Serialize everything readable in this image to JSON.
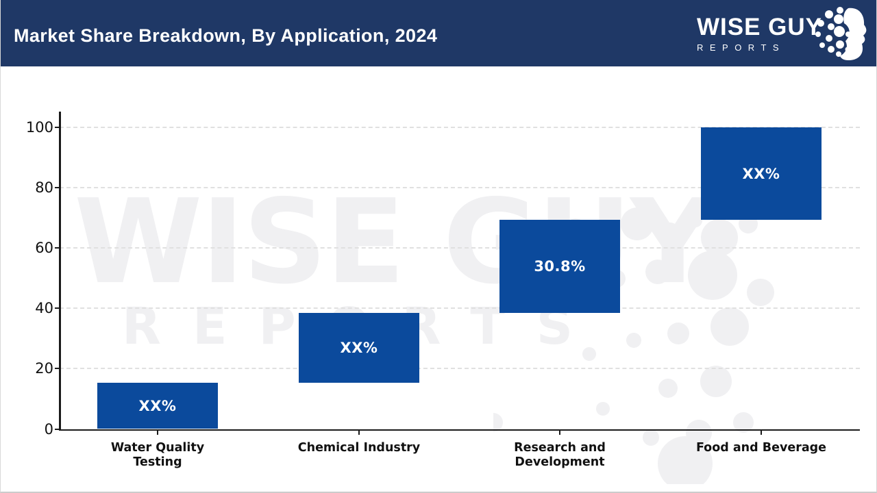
{
  "header": {
    "title": "Market Share Breakdown, By Application, 2024",
    "bg_color": "#1f3866",
    "logo": {
      "wordmark": "WISE GUY",
      "tagline": "REPORTS"
    }
  },
  "watermark": {
    "wordmark": "WISE GUY",
    "tagline": "REPORTS"
  },
  "chart_data": {
    "type": "bar",
    "subtype": "waterfall",
    "title": "Market Share Breakdown, By Application, 2024",
    "categories": [
      "Water Quality Testing",
      "Chemical Industry",
      "Research and Development",
      "Food and Beverage"
    ],
    "category_lines": [
      [
        "Water Quality",
        "Testing"
      ],
      [
        "Chemical Industry"
      ],
      [
        "Research and",
        "Development"
      ],
      [
        "Food and Beverage"
      ]
    ],
    "bars": [
      {
        "category": "Water Quality Testing",
        "start": 0,
        "end": 15.4,
        "label": "XX%"
      },
      {
        "category": "Chemical Industry",
        "start": 15.4,
        "end": 38.5,
        "label": "XX%"
      },
      {
        "category": "Research and Development",
        "start": 38.5,
        "end": 69.3,
        "label": "30.8%"
      },
      {
        "category": "Food and Beverage",
        "start": 69.3,
        "end": 100,
        "label": "XX%"
      }
    ],
    "bar_color": "#0b4a9c",
    "bar_label_color": "#ffffff",
    "ylim": [
      0,
      100
    ],
    "yticks": [
      0,
      20,
      40,
      60,
      80,
      100
    ],
    "grid": "horizontal-dashed",
    "gridline_color": "#e0e0e0",
    "axis_color": "#1a1a1a",
    "legend": "none"
  }
}
